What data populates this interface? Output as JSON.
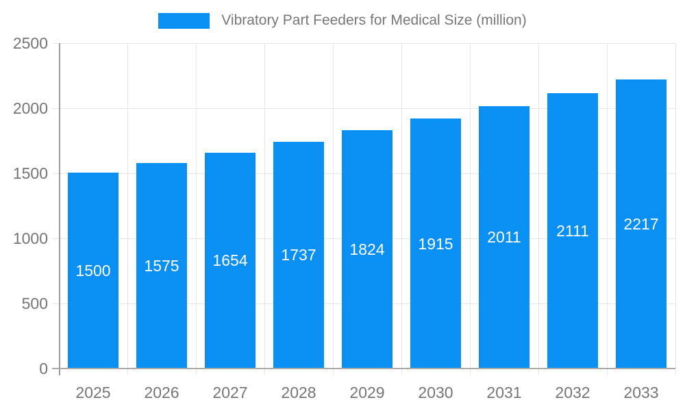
{
  "legend": {
    "entries": [
      {
        "label": "Vibratory Part Feeders for Medical Size (million)",
        "swatch_color": "#0a90f2"
      }
    ],
    "position": "top"
  },
  "chart_data": {
    "type": "bar",
    "title": "Vibratory Part Feeders for Medical Size (million)",
    "categories": [
      "2025",
      "2026",
      "2027",
      "2028",
      "2029",
      "2030",
      "2031",
      "2032",
      "2033"
    ],
    "series": [
      {
        "name": "Vibratory Part Feeders for Medical Size (million)",
        "values": [
          1500,
          1575,
          1654,
          1737,
          1824,
          1915,
          2011,
          2111,
          2217
        ]
      }
    ],
    "value_labels_shown": true,
    "xlabel": "",
    "ylabel": "",
    "ylim": [
      0,
      2500
    ],
    "yticks": [
      0,
      500,
      1000,
      1500,
      2000,
      2500
    ],
    "grid": true,
    "legend_position": "top",
    "colors": {
      "bar": "#0a90f2",
      "value_label_text": "#ffffff",
      "axis_text": "#757575",
      "legend_text": "#777777",
      "gridline": "#e7e7e7",
      "y_axis_line": "#9a9a9a",
      "x_axis_line": "#ababab",
      "background": "#ffffff"
    }
  }
}
